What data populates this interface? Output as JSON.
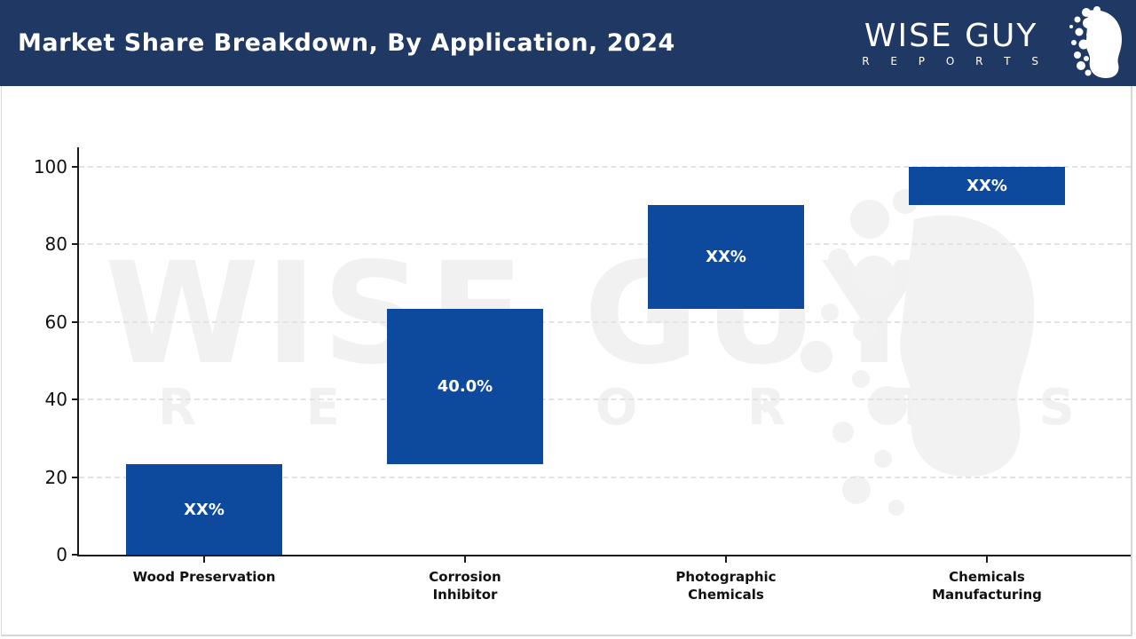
{
  "header": {
    "title": "Market Share Breakdown, By Application, 2024",
    "bg_color": "#203864",
    "logo": {
      "line1": "WISE GUY",
      "line2": "R E P O R T S"
    }
  },
  "watermark": {
    "line1": "WISE GUY",
    "line2": "R E P O R T S"
  },
  "chart_data": {
    "type": "bar",
    "subtype": "floating-waterfall",
    "title": "Market Share Breakdown, By Application, 2024",
    "xlabel": "",
    "ylabel": "",
    "ylim": [
      0,
      105
    ],
    "y_ticks": [
      0,
      20,
      40,
      60,
      80,
      100
    ],
    "grid": "horizontal dashed",
    "legend": "none",
    "bar_color": "#0d4a9e",
    "bar_label_color": "#ffffff",
    "categories": [
      [
        "Wood Preservation"
      ],
      [
        "Corrosion",
        "Inhibitor"
      ],
      [
        "Photographic",
        "Chemicals"
      ],
      [
        "Chemicals",
        "Manufacturing"
      ]
    ],
    "bars": [
      {
        "category": "Wood Preservation",
        "base": 0,
        "top": 23.3,
        "segment_value": 23.3,
        "label": "XX%"
      },
      {
        "category": "Corrosion Inhibitor",
        "base": 23.3,
        "top": 63.3,
        "segment_value": 40.0,
        "label": "40.0%"
      },
      {
        "category": "Photographic Chemicals",
        "base": 63.3,
        "top": 90.0,
        "segment_value": 26.7,
        "label": "XX%"
      },
      {
        "category": "Chemicals Manufacturing",
        "base": 90.0,
        "top": 100.0,
        "segment_value": 10.0,
        "label": "XX%"
      }
    ]
  }
}
